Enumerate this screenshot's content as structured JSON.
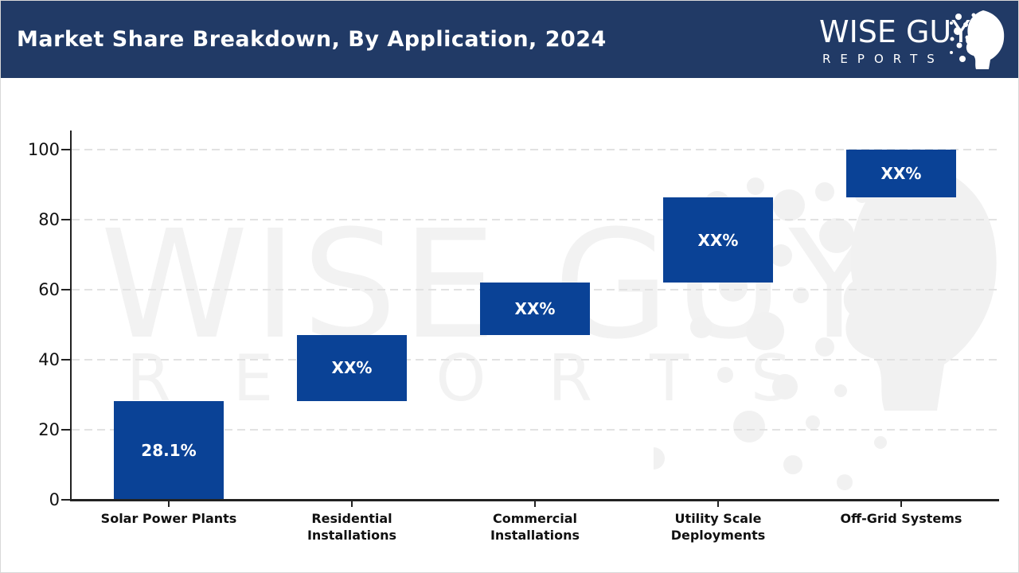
{
  "header": {
    "title": "Market Share Breakdown, By Application, 2024",
    "logo": {
      "line1": "WISE GUY",
      "line2": "R E P O R T S"
    }
  },
  "watermark": {
    "line1": "WISE GUY",
    "line2": "REPORTS"
  },
  "colors": {
    "header_bg": "#213a66",
    "bar": "#0a4296",
    "bar_label": "#ffffff",
    "grid": "#e2e2e2",
    "axis": "#222222",
    "watermark": "#f2f2f2"
  },
  "chart_data": {
    "type": "bar",
    "subtype": "waterfall-floating-bars",
    "title": "Market Share Breakdown, By Application, 2024",
    "xlabel": "",
    "ylabel": "",
    "ylim": [
      0,
      105
    ],
    "yticks": [
      0,
      20,
      40,
      60,
      80,
      100
    ],
    "grid": "horizontal-dashed",
    "legend": "none",
    "categories": [
      "Solar Power Plants",
      "Residential Installations",
      "Commercial Installations",
      "Utility Scale Deployments",
      "Off-Grid Systems"
    ],
    "category_lines": [
      [
        "Solar Power Plants"
      ],
      [
        "Residential",
        "Installations"
      ],
      [
        "Commercial",
        "Installations"
      ],
      [
        "Utility Scale",
        "Deployments"
      ],
      [
        "Off-Grid Systems"
      ]
    ],
    "bars": [
      {
        "from": 0,
        "to": 28.1,
        "label": "28.1%"
      },
      {
        "from": 28.1,
        "to": 47,
        "label": "XX%"
      },
      {
        "from": 47,
        "to": 62,
        "label": "XX%"
      },
      {
        "from": 62,
        "to": 86.3,
        "label": "XX%"
      },
      {
        "from": 86.3,
        "to": 100,
        "label": "XX%"
      }
    ]
  }
}
